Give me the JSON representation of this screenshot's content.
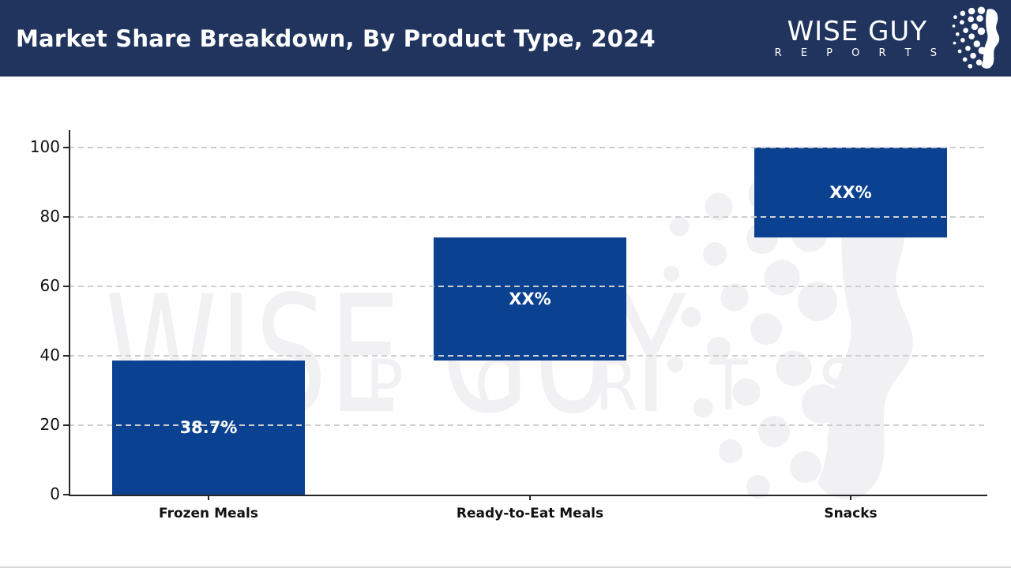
{
  "header": {
    "title": "Market Share Breakdown, By Product Type, 2024",
    "logo": {
      "line1": "WISE GUY",
      "line2": "R E P O R T S"
    }
  },
  "watermark": {
    "line1": "WISE GUY",
    "line2": "R E P O R T S"
  },
  "chart_data": {
    "type": "bar",
    "subtype": "waterfall",
    "title": "Market Share Breakdown, By Product Type, 2024",
    "categories": [
      "Frozen Meals",
      "Ready-to-Eat Meals",
      "Snacks"
    ],
    "segments": [
      {
        "category": "Frozen Meals",
        "start": 0,
        "end": 38.7,
        "label": "38.7%"
      },
      {
        "category": "Ready-to-Eat Meals",
        "start": 38.7,
        "end": 74.1,
        "label": "XX%"
      },
      {
        "category": "Snacks",
        "start": 74.1,
        "end": 100,
        "label": "XX%"
      }
    ],
    "yticks": [
      0,
      20,
      40,
      60,
      80,
      100
    ],
    "ylim": [
      0,
      105
    ],
    "xlabel": "",
    "ylabel": "",
    "grid": "dashed-horizontal-above-bars",
    "legend": "none",
    "bar_color": "#0b4191",
    "bar_label_color": "#ffffff",
    "axis_color": "#262626",
    "grid_color": "#cfcfcf"
  },
  "colors": {
    "header_bg": "#20345e",
    "bar": "#0b4191",
    "watermark": "#f1f1f4",
    "text": "#111111"
  }
}
